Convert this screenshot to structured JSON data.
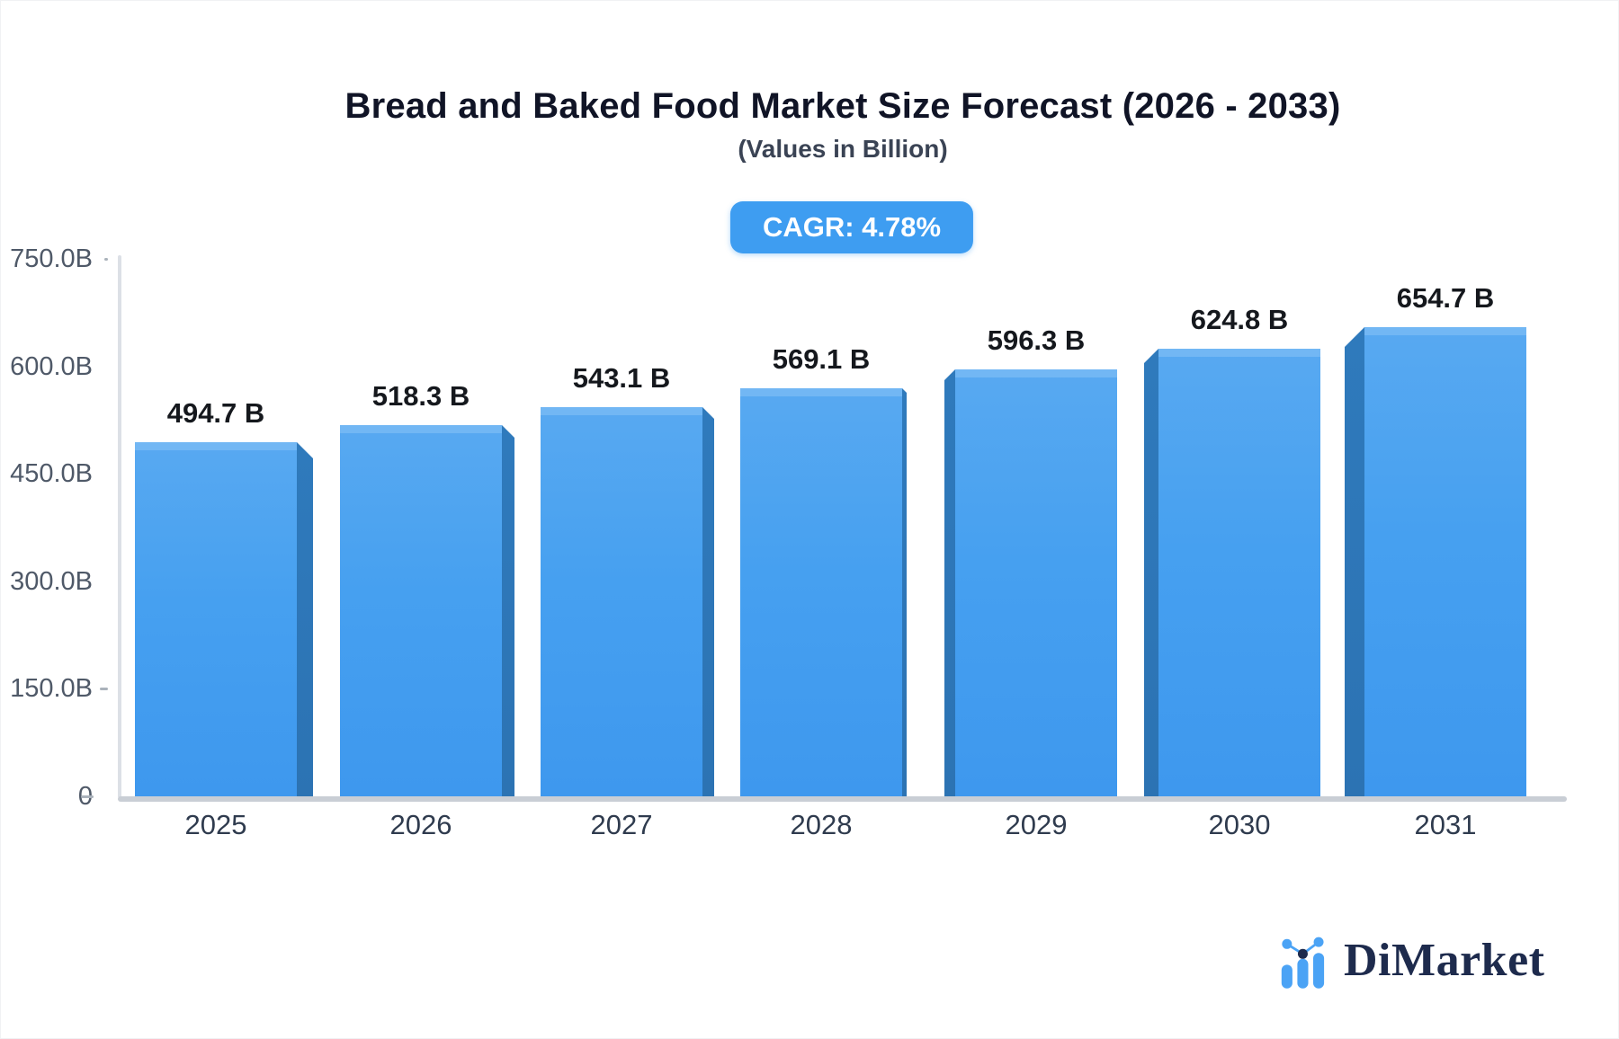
{
  "title": "Bread and Baked Food Market Size Forecast (2026 - 2033)",
  "subtitle": "(Values in Billion)",
  "cagr_badge": "CAGR: 4.78%",
  "watermark": {
    "brand": "DiMarket"
  },
  "colors": {
    "accent": "#3e9df1",
    "bar_front_top": "#58a9f1",
    "bar_front_bottom": "#3e98ee",
    "bar_top_highlight": "#72b7f4",
    "bar_side_shadow": "#2d76b7",
    "axis_line": "#dce0e6",
    "baseline": "#c9ced5",
    "title_text": "#101426",
    "tick_label": "#4f5968",
    "x_label": "#2f3b4e",
    "logo_navy": "#1e2b4d",
    "logo_blue": "#4ba3f5"
  },
  "chart_data": {
    "type": "bar",
    "title": "Bread and Baked Food Market Size Forecast (2026 - 2033)",
    "subtitle": "(Values in Billion)",
    "unit": "Billion",
    "cagr": "4.78%",
    "categories": [
      "2025",
      "2026",
      "2027",
      "2028",
      "2029",
      "2030",
      "2031"
    ],
    "values": [
      494.7,
      518.3,
      543.1,
      569.1,
      596.3,
      624.8,
      654.7
    ],
    "value_labels": [
      "494.7 B",
      "518.3 B",
      "543.1 B",
      "569.1 B",
      "596.3 B",
      "624.8 B",
      "654.7 B"
    ],
    "ylim": [
      0,
      750
    ],
    "y_ticks": [
      "750.0B",
      "600.0B",
      "450.0B",
      "300.0B",
      "150.0B",
      "0"
    ],
    "y_tick_values": [
      750,
      600,
      450,
      300,
      150,
      0
    ],
    "grid": false,
    "legend": null,
    "xlabel": "",
    "ylabel": ""
  }
}
